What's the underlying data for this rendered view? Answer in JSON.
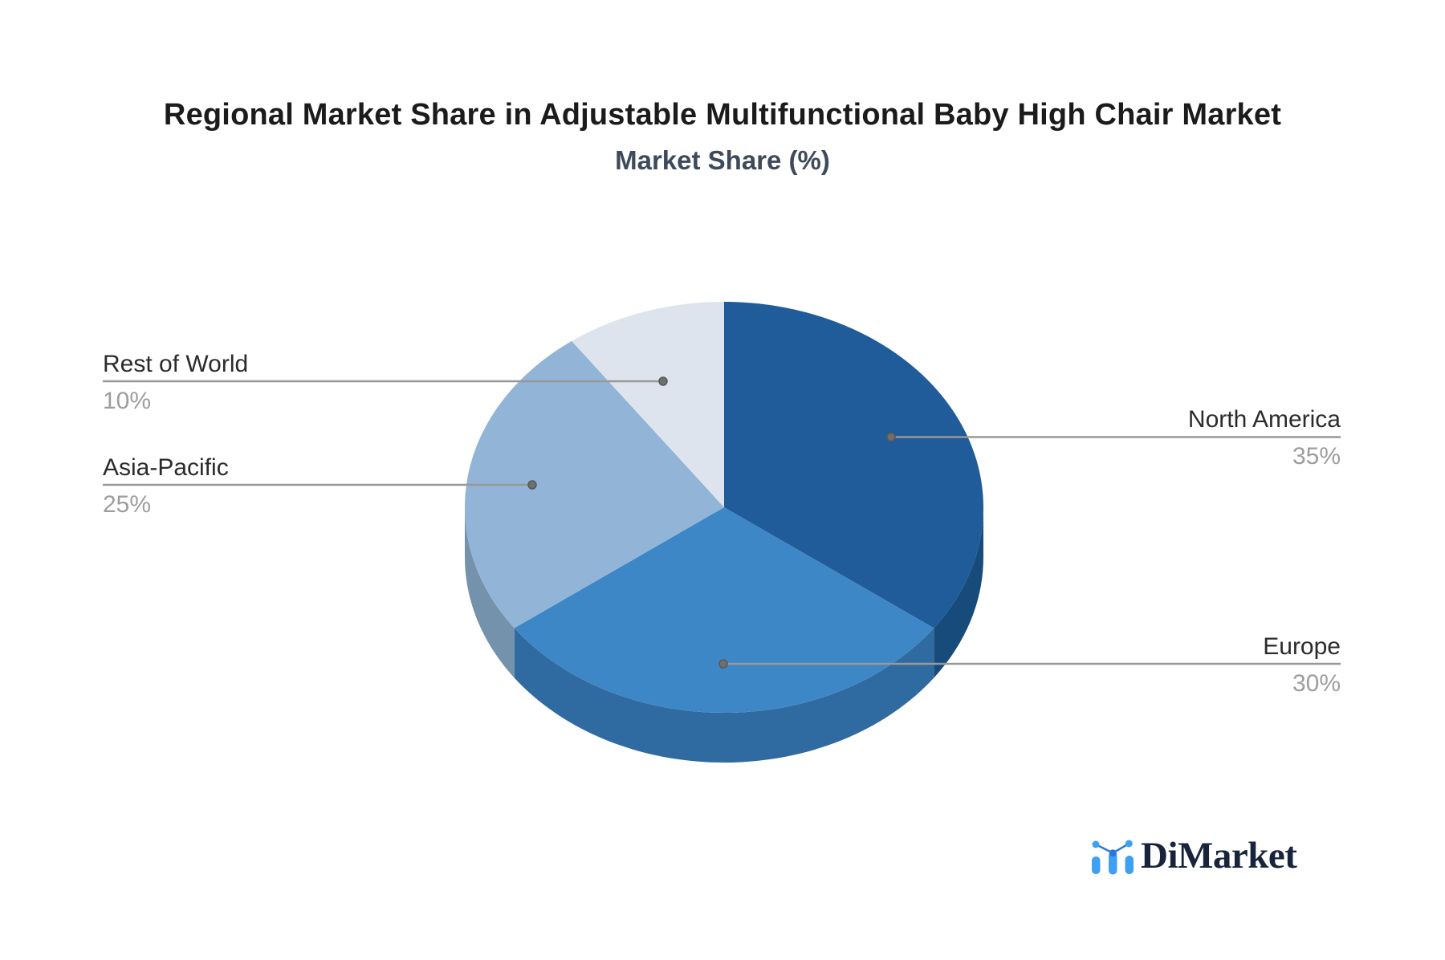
{
  "title": "Regional Market Share in Adjustable Multifunctional Baby High Chair Market",
  "subtitle": "Market Share (%)",
  "logo": {
    "text": "DiMarket"
  },
  "chart_data": {
    "type": "pie",
    "title": "Regional Market Share in Adjustable Multifunctional Baby High Chair Market",
    "subtitle": "Market Share (%)",
    "unit": "%",
    "style_3d": true,
    "start_angle_deg": 0,
    "direction": "clockwise",
    "legend_position": "none",
    "labels_style": "callout",
    "slices": [
      {
        "name": "North America",
        "value": 35,
        "pct_label": "35%",
        "color": "#1F5C99",
        "side_color": "#174B7C"
      },
      {
        "name": "Europe",
        "value": 30,
        "pct_label": "30%",
        "color": "#3E87C6",
        "side_color": "#2F6BA0"
      },
      {
        "name": "Asia-Pacific",
        "value": 25,
        "pct_label": "25%",
        "color": "#92B4D6",
        "side_color": "#7592AD"
      },
      {
        "name": "Rest of World",
        "value": 10,
        "pct_label": "10%",
        "color": "#DDE4EE",
        "side_color": "#B9C6D6"
      }
    ]
  },
  "colors": {
    "background": "#FFFFFF",
    "title": "#1B1B1B",
    "subtitle": "#3E4A5C",
    "label_name": "#2B2B2B",
    "label_pct": "#9D9D9D",
    "leader_line": "#989898",
    "leader_dot": "#6F6F6F",
    "logo_text": "#17243C",
    "logo_bar": "#3DA0F2",
    "logo_accent": "#2878DC"
  }
}
